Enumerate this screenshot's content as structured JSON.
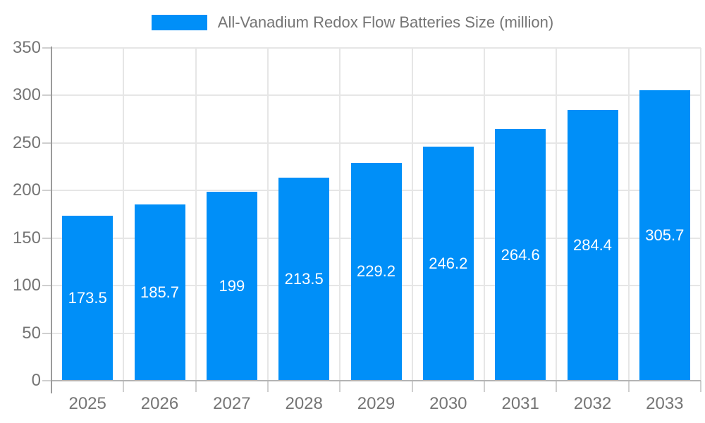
{
  "legend": {
    "series_label": "All-Vanadium Redox Flow Batteries Size (million)",
    "swatch_color": "#008FF8"
  },
  "chart_data": {
    "type": "bar",
    "title": "All-Vanadium Redox Flow Batteries Size (million)",
    "categories": [
      "2025",
      "2026",
      "2027",
      "2028",
      "2029",
      "2030",
      "2031",
      "2032",
      "2033"
    ],
    "values": [
      173.5,
      185.7,
      199,
      213.5,
      229.2,
      246.2,
      264.6,
      284.4,
      305.7
    ],
    "data_labels": [
      "173.5",
      "185.7",
      "199",
      "213.5",
      "229.2",
      "246.2",
      "264.6",
      "284.4",
      "305.7"
    ],
    "xlabel": "",
    "ylabel": "",
    "ylim": [
      0,
      350
    ],
    "yticks": [
      0,
      50,
      100,
      150,
      200,
      250,
      300,
      350
    ],
    "grid": true,
    "legend_position": "top-center"
  },
  "colors": {
    "background": "#FFFFFF",
    "bar": "#008FF8",
    "axis_text": "#757575",
    "legend_text": "#757575",
    "grid_line": "#E6E6E6",
    "zero_line": "#B3B3B3",
    "axis_line": "#9B9B9B",
    "tick_mark": "#CFCFCF",
    "data_label": "#FFFFFF"
  }
}
